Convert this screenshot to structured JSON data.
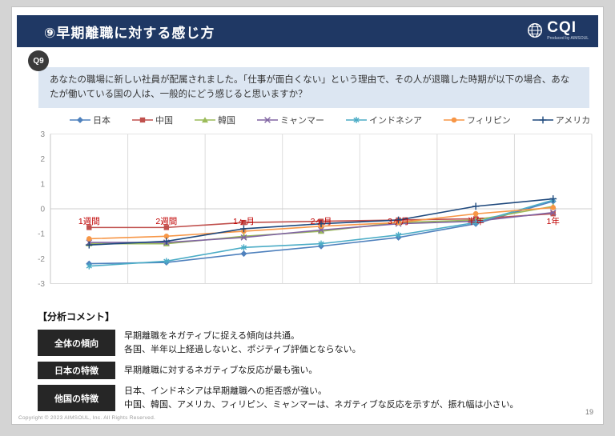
{
  "header": {
    "title": "⑨早期離職に対する感じ方",
    "logo_text": "CQI",
    "logo_subtext": "Produced by AIMSOUL"
  },
  "question": {
    "badge": "Q9",
    "text": "あなたの職場に新しい社員が配属されました。「仕事が面白くない」という理由で、その人が退職した時期が以下の場合、あなたが働いている国の人は、一般的にどう感じると思いますか？"
  },
  "chart_data": {
    "type": "line",
    "title": "",
    "categories": [
      "1週間",
      "2週間",
      "1ヶ月",
      "2ヶ月",
      "3ヶ月",
      "半年",
      "1年"
    ],
    "series": [
      {
        "name": "日本",
        "color": "#4F81BD",
        "marker": "diamond",
        "values": [
          -2.2,
          -2.15,
          -1.8,
          -1.5,
          -1.15,
          -0.6,
          0.3
        ]
      },
      {
        "name": "中国",
        "color": "#C0504D",
        "marker": "square",
        "values": [
          -0.75,
          -0.75,
          -0.55,
          -0.5,
          -0.45,
          -0.4,
          -0.2
        ]
      },
      {
        "name": "韓国",
        "color": "#9BBB59",
        "marker": "triangle",
        "values": [
          -1.4,
          -1.4,
          -1.1,
          -0.9,
          -0.55,
          -0.45,
          0.1
        ]
      },
      {
        "name": "ミャンマー",
        "color": "#8064A2",
        "marker": "x",
        "values": [
          -1.35,
          -1.35,
          -1.15,
          -0.85,
          -0.6,
          -0.5,
          -0.15
        ]
      },
      {
        "name": "インドネシア",
        "color": "#4BACC6",
        "marker": "asterisk",
        "values": [
          -2.3,
          -2.1,
          -1.55,
          -1.4,
          -1.05,
          -0.55,
          0.35
        ]
      },
      {
        "name": "フィリピン",
        "color": "#F79646",
        "marker": "circle",
        "values": [
          -1.2,
          -1.1,
          -0.9,
          -0.7,
          -0.55,
          -0.2,
          0.05
        ]
      },
      {
        "name": "アメリカ",
        "color": "#1F497D",
        "marker": "plus",
        "values": [
          -1.45,
          -1.3,
          -0.8,
          -0.6,
          -0.45,
          0.1,
          0.4
        ]
      }
    ],
    "ylim": [
      -3,
      3
    ],
    "yticks": [
      3,
      2,
      1,
      0,
      -1,
      -2,
      -3
    ],
    "grid": "vertical category boundaries + zero line",
    "legend_position": "top",
    "category_label_color": "#C00000",
    "axis_label_color": "#8a8a8a"
  },
  "comments": {
    "title": "【分析コメント】",
    "rows": [
      {
        "label": "全体の傾向",
        "lines": [
          "早期離職をネガティブに捉える傾向は共通。",
          "各国、半年以上経過しないと、ポジティブ評価とならない。"
        ]
      },
      {
        "label": "日本の特徴",
        "lines": [
          "早期離職に対するネガティブな反応が最も強い。"
        ]
      },
      {
        "label": "他国の特徴",
        "lines": [
          "日本、インドネシアは早期離職への拒否感が強い。",
          "中国、韓国、アメリカ、フィリピン、ミャンマーは、ネガティブな反応を示すが、振れ幅は小さい。"
        ]
      }
    ]
  },
  "footer": {
    "copyright": "Copyright © 2023 AIMSOUL, Inc. All Rights Reserved.",
    "page": "19"
  },
  "colors": {
    "header_bg": "#1F3864",
    "question_bg": "#DCE6F2",
    "badge_bg": "#3A3A3A",
    "label_box_bg": "#262626",
    "slide_bg": "#FFFFFF",
    "stage_bg": "#D4D4D4"
  }
}
